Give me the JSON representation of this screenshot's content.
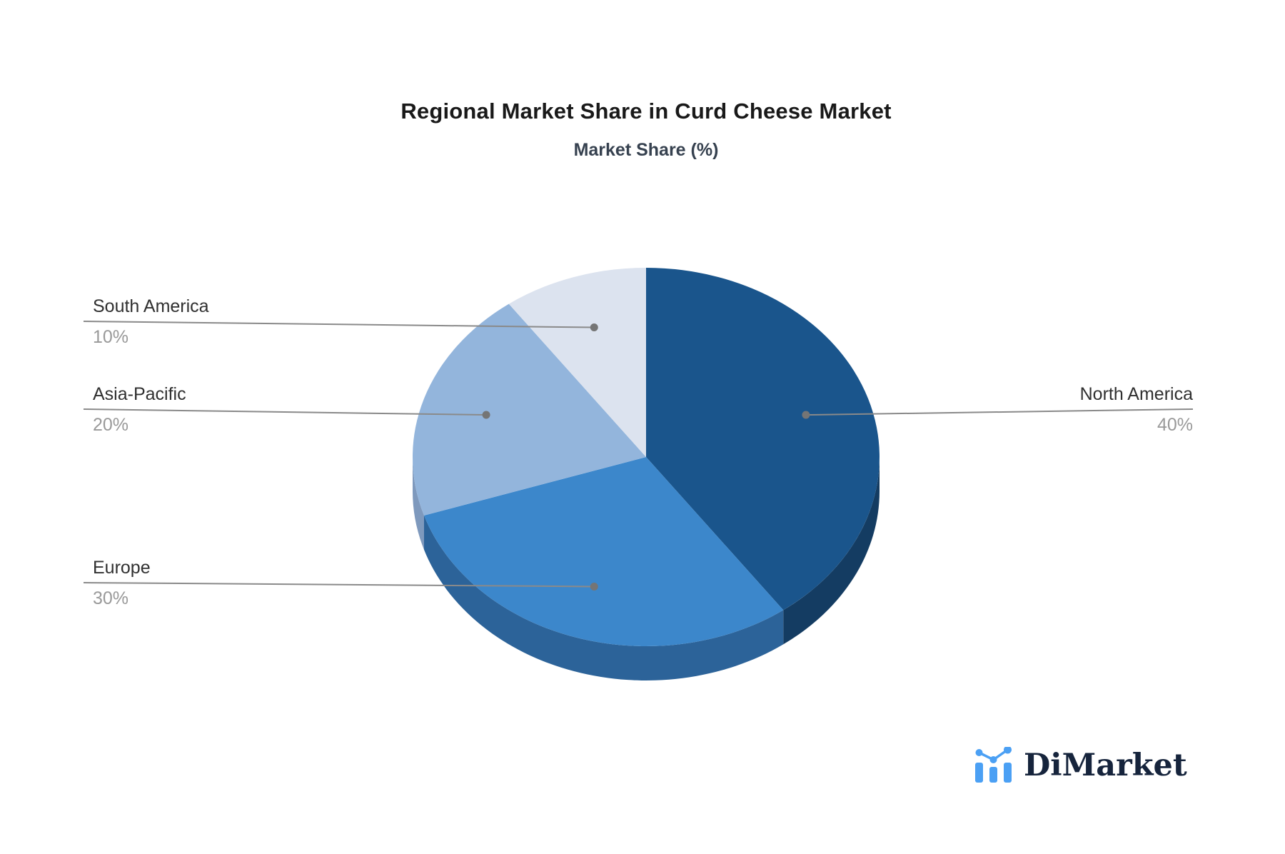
{
  "header": {
    "title": "Regional Market Share in Curd Cheese Market",
    "subtitle": "Market Share (%)"
  },
  "chart_data": {
    "type": "pie",
    "style": "3d-pie",
    "title": "Regional Market Share in Curd Cheese Market",
    "subtitle": "Market Share (%)",
    "unit": "%",
    "start_angle_deg": 0,
    "direction": "clockwise",
    "legend_position": "callout-labels",
    "slices": [
      {
        "label": "North America",
        "value": 40,
        "pct_label": "40%",
        "color": "#1A558C",
        "side_color": "#143C62"
      },
      {
        "label": "Europe",
        "value": 30,
        "pct_label": "30%",
        "color": "#3C87CB",
        "side_color": "#2C6399"
      },
      {
        "label": "Asia-Pacific",
        "value": 20,
        "pct_label": "20%",
        "color": "#93B5DC",
        "side_color": "#7E99BD"
      },
      {
        "label": "South America",
        "value": 10,
        "pct_label": "10%",
        "color": "#DCE3EF",
        "side_color": "#C8D2E2"
      }
    ]
  },
  "colors": {
    "background": "#ffffff",
    "title_text": "#191919",
    "subtitle_text": "#36414F",
    "label_text": "#303030",
    "pct_text": "#999999",
    "leader_line": "#8A8A8A",
    "leader_dot": "#757575",
    "logo_text": "#16243C",
    "logo_icon": "#4BA0F4"
  },
  "logo": {
    "text": "DiMarket",
    "icon": "bar-chart-with-trend-line"
  }
}
